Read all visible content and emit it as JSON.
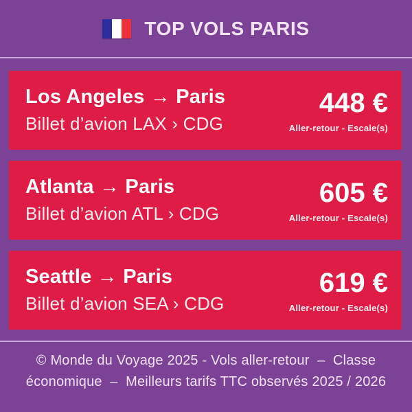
{
  "header": {
    "title": "TOP VOLS PARIS",
    "flag_icon": "french-flag-icon"
  },
  "cards": [
    {
      "route": "Los Angeles → Paris",
      "description": "Billet d’avion LAX › CDG",
      "price": "448 €",
      "conditions": "Aller-retour - Escale(s)"
    },
    {
      "route": "Atlanta → Paris",
      "description": "Billet d’avion ATL › CDG",
      "price": "605 €",
      "conditions": "Aller-retour - Escale(s)"
    },
    {
      "route": "Seattle → Paris",
      "description": "Billet d’avion SEA › CDG",
      "price": "619 €",
      "conditions": "Aller-retour - Escale(s)"
    }
  ],
  "footer": {
    "line1": "© Monde du Voyage 2025 - Vols aller-retour  –  Classe",
    "line2": "économique  –  Meilleurs tarifs TTC observés 2025 / 2026"
  },
  "colors": {
    "background": "#7B4296",
    "card_red": "#DF1C46",
    "divider": "#CBA6DB",
    "light_text": "#F2E2F2",
    "card_text": "#FFFFFF",
    "flag_blue": "#2A2E9E",
    "flag_white": "#FFFFFF",
    "flag_red": "#EC3237"
  }
}
